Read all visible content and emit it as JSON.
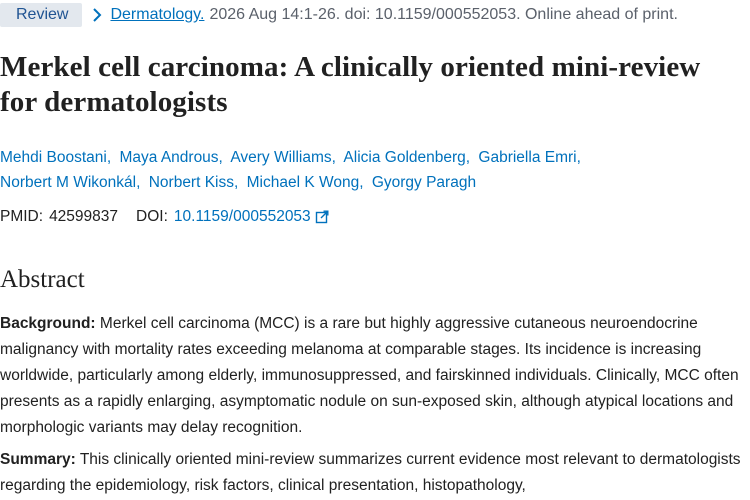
{
  "header": {
    "article_type": "Review",
    "journal": "Dermatology.",
    "citation": "2026 Aug 14:1-26. doi: 10.1159/000552053. Online ahead of print."
  },
  "title": "Merkel cell carcinoma: A clinically oriented mini-review for dermatologists",
  "authors": [
    "Mehdi Boostani,",
    "Maya Androus,",
    "Avery Williams,",
    "Alicia Goldenberg,",
    "Gabriella Emri,",
    "Norbert M Wikonkál,",
    "Norbert Kiss,",
    "Michael K Wong,",
    "Gyorgy Paragh"
  ],
  "identifiers": {
    "pmid_label": "PMID:",
    "pmid": "42599837",
    "doi_label": "DOI:",
    "doi": "10.1159/000552053"
  },
  "abstract": {
    "heading": "Abstract",
    "paragraphs": [
      {
        "label": "Background:",
        "text": "Merkel cell carcinoma (MCC) is a rare but highly aggressive cutaneous neuroendocrine malignancy with mortality rates exceeding melanoma at comparable stages. Its incidence is increasing worldwide, particularly among elderly, immunosuppressed, and fairskinned individuals. Clinically, MCC often presents as a rapidly enlarging, asymptomatic nodule on sun-exposed skin, although atypical locations and morphologic variants may delay recognition."
      },
      {
        "label": "Summary:",
        "text": "This clinically oriented mini-review summarizes current evidence most relevant to dermatologists regarding the epidemiology, risk factors, clinical presentation, histopathology,"
      }
    ]
  }
}
